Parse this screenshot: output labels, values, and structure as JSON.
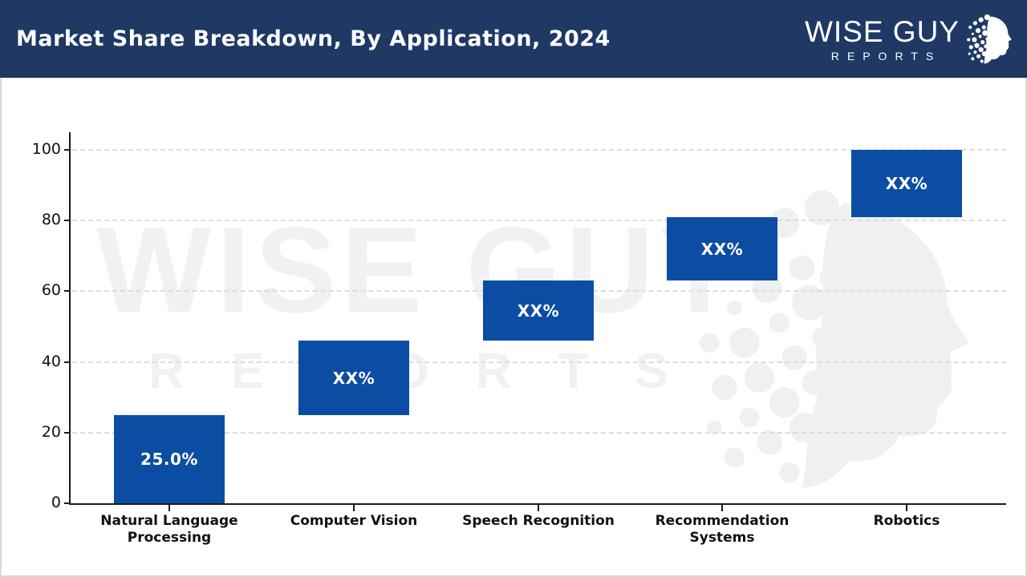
{
  "header": {
    "title": "Market Share Breakdown, By Application, 2024",
    "logo_line1": "WISE GUY",
    "logo_line2": "REPORTS"
  },
  "watermark": {
    "line1": "WISE GUY",
    "line2": "REPORTS"
  },
  "colors": {
    "header_bg": "#1f3864",
    "bar": "#0b4da2",
    "gridline": "#dcdcdc",
    "axis": "#1a1a1a",
    "watermark": "#f0f1f3"
  },
  "chart_data": {
    "type": "bar",
    "subtype": "waterfall",
    "title": "Market Share Breakdown, By Application, 2024",
    "xlabel": "",
    "ylabel": "",
    "ylim": [
      0,
      105
    ],
    "y_ticks": [
      0,
      20,
      40,
      60,
      80,
      100
    ],
    "grid": "horizontal-dashed",
    "legend": "none",
    "categories": [
      "Natural Language Processing",
      "Computer Vision",
      "Speech Recognition",
      "Recommendation Systems",
      "Robotics"
    ],
    "segments": [
      {
        "category": "Natural Language Processing",
        "start": 0,
        "end": 25,
        "label": "25.0%"
      },
      {
        "category": "Computer Vision",
        "start": 25,
        "end": 46,
        "label": "XX%"
      },
      {
        "category": "Speech Recognition",
        "start": 46,
        "end": 63,
        "label": "XX%"
      },
      {
        "category": "Recommendation Systems",
        "start": 63,
        "end": 81,
        "label": "XX%"
      },
      {
        "category": "Robotics",
        "start": 81,
        "end": 100,
        "label": "XX%"
      }
    ]
  }
}
